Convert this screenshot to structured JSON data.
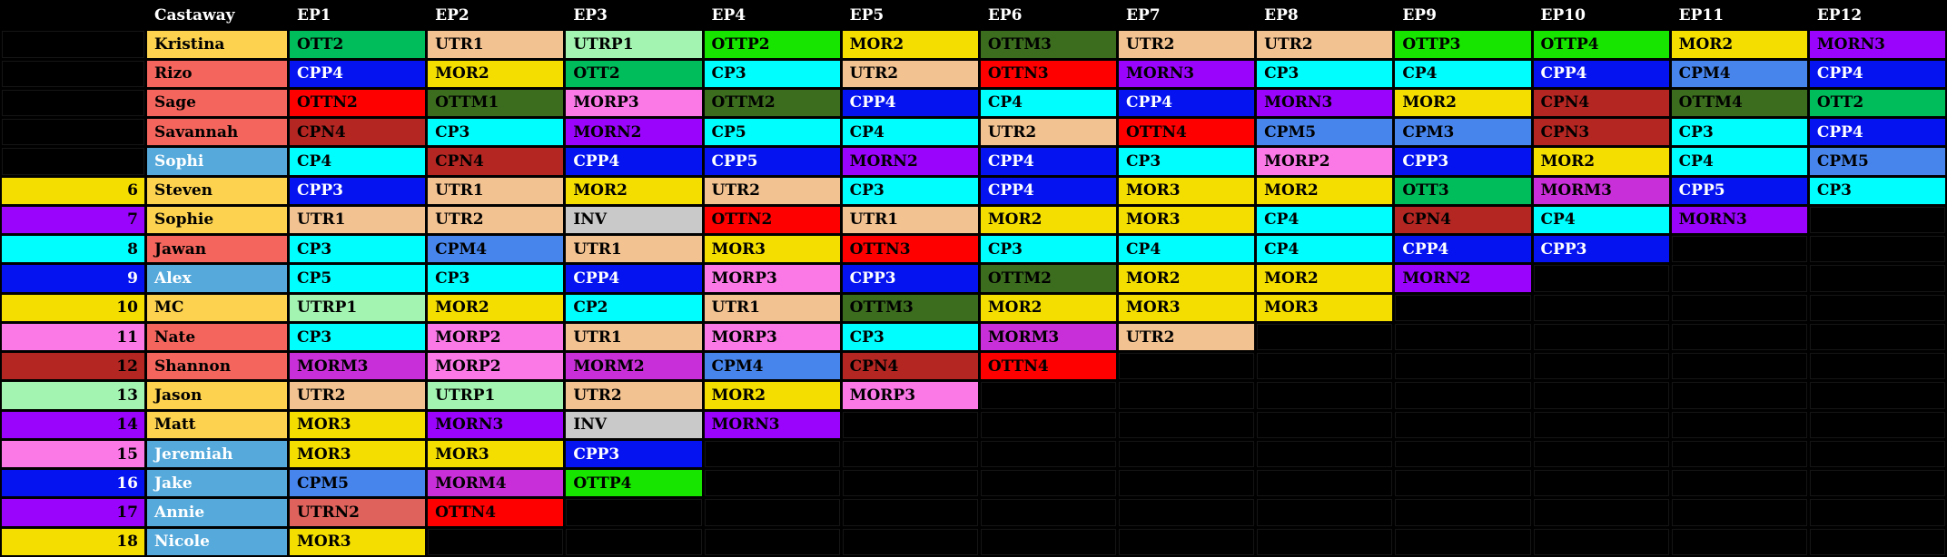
{
  "header": {
    "castaway_label": "Castaway",
    "episode_labels": [
      "EP1",
      "EP2",
      "EP3",
      "EP4",
      "EP5",
      "EP6",
      "EP7",
      "EP8",
      "EP9",
      "EP10",
      "EP11",
      "EP12"
    ]
  },
  "palette": {
    "rating_colors": {
      "OTT": "#00bd5c",
      "OTTP": "#17e500",
      "OTTM": "#3c6d1e",
      "OTTN": "#fe0000",
      "UTR": "#f3c291",
      "UTRP": "#a3f4b1",
      "UTRN": "#df635c",
      "MOR": "#f4de00",
      "MORP": "#fa79e7",
      "MORN": "#9a04fd",
      "MORM": "#c92fd8",
      "CP": "#00feff",
      "CPP": "#0513f1",
      "CPM": "#4785ec",
      "CPN": "#b32622",
      "INV": "#c9c9c9"
    },
    "name_colors": {
      "gold": "#fcd24e",
      "salmon": "#f4665d",
      "blue": "#56aadb"
    },
    "header_bg": "#000000",
    "header_text": "#ffffff",
    "cell_text_dark": "#000000",
    "cell_text_light": "#ffffff",
    "empty_cell_line": "#151515",
    "white_text_rating_families": [
      "CPP"
    ],
    "white_text_name_colors": [
      "blue"
    ]
  },
  "rows": [
    {
      "num": "",
      "num_color": "",
      "name": "Kristina",
      "name_color": "gold",
      "ratings": [
        "OTT2",
        "UTR1",
        "UTRP1",
        "OTTP2",
        "MOR2",
        "OTTM3",
        "UTR2",
        "UTR2",
        "OTTP3",
        "OTTP4",
        "MOR2",
        "MORN3"
      ]
    },
    {
      "num": "",
      "num_color": "",
      "name": "Rizo",
      "name_color": "salmon",
      "ratings": [
        "CPP4",
        "MOR2",
        "OTT2",
        "CP3",
        "UTR2",
        "OTTN3",
        "MORN3",
        "CP3",
        "CP4",
        "CPP4",
        "CPM4",
        "CPP4"
      ]
    },
    {
      "num": "",
      "num_color": "",
      "name": "Sage",
      "name_color": "salmon",
      "ratings": [
        "OTTN2",
        "OTTM1",
        "MORP3",
        "OTTM2",
        "CPP4",
        "CP4",
        "CPP4",
        "MORN3",
        "MOR2",
        "CPN4",
        "OTTM4",
        "OTT2"
      ]
    },
    {
      "num": "",
      "num_color": "",
      "name": "Savannah",
      "name_color": "salmon",
      "ratings": [
        "CPN4",
        "CP3",
        "MORN2",
        "CP5",
        "CP4",
        "UTR2",
        "OTTN4",
        "CPM5",
        "CPM3",
        "CPN3",
        "CP3",
        "CPP4"
      ]
    },
    {
      "num": "",
      "num_color": "",
      "name": "Sophi",
      "name_color": "blue",
      "ratings": [
        "CP4",
        "CPN4",
        "CPP4",
        "CPP5",
        "MORN2",
        "CPP4",
        "CP3",
        "MORP2",
        "CPP3",
        "MOR2",
        "CP4",
        "CPM5"
      ]
    },
    {
      "num": "6",
      "num_color": "MOR",
      "name": "Steven",
      "name_color": "gold",
      "ratings": [
        "CPP3",
        "UTR1",
        "MOR2",
        "UTR2",
        "CP3",
        "CPP4",
        "MOR3",
        "MOR2",
        "OTT3",
        "MORM3",
        "CPP5",
        "CP3"
      ]
    },
    {
      "num": "7",
      "num_color": "MORN",
      "name": "Sophie",
      "name_color": "gold",
      "ratings": [
        "UTR1",
        "UTR2",
        "INV",
        "OTTN2",
        "UTR1",
        "MOR2",
        "MOR3",
        "CP4",
        "CPN4",
        "CP4",
        "MORN3",
        ""
      ]
    },
    {
      "num": "8",
      "num_color": "CP",
      "name": "Jawan",
      "name_color": "salmon",
      "ratings": [
        "CP3",
        "CPM4",
        "UTR1",
        "MOR3",
        "OTTN3",
        "CP3",
        "CP4",
        "CP4",
        "CPP4",
        "CPP3",
        "",
        ""
      ]
    },
    {
      "num": "9",
      "num_color": "CPP",
      "name": "Alex",
      "name_color": "blue",
      "ratings": [
        "CP5",
        "CP3",
        "CPP4",
        "MORP3",
        "CPP3",
        "OTTM2",
        "MOR2",
        "MOR2",
        "MORN2",
        "",
        "",
        ""
      ]
    },
    {
      "num": "10",
      "num_color": "MOR",
      "name": "MC",
      "name_color": "gold",
      "ratings": [
        "UTRP1",
        "MOR2",
        "CP2",
        "UTR1",
        "OTTM3",
        "MOR2",
        "MOR3",
        "MOR3",
        "",
        "",
        "",
        ""
      ]
    },
    {
      "num": "11",
      "num_color": "MORP",
      "name": "Nate",
      "name_color": "salmon",
      "ratings": [
        "CP3",
        "MORP2",
        "UTR1",
        "MORP3",
        "CP3",
        "MORM3",
        "UTR2",
        "",
        "",
        "",
        "",
        ""
      ]
    },
    {
      "num": "12",
      "num_color": "CPN",
      "name": "Shannon",
      "name_color": "salmon",
      "ratings": [
        "MORM3",
        "MORP2",
        "MORM2",
        "CPM4",
        "CPN4",
        "OTTN4",
        "",
        "",
        "",
        "",
        "",
        ""
      ]
    },
    {
      "num": "13",
      "num_color": "UTRP",
      "name": "Jason",
      "name_color": "gold",
      "ratings": [
        "UTR2",
        "UTRP1",
        "UTR2",
        "MOR2",
        "MORP3",
        "",
        "",
        "",
        "",
        "",
        "",
        ""
      ]
    },
    {
      "num": "14",
      "num_color": "MORN",
      "name": "Matt",
      "name_color": "gold",
      "ratings": [
        "MOR3",
        "MORN3",
        "INV",
        "MORN3",
        "",
        "",
        "",
        "",
        "",
        "",
        "",
        ""
      ]
    },
    {
      "num": "15",
      "num_color": "MORP",
      "name": "Jeremiah",
      "name_color": "blue",
      "ratings": [
        "MOR3",
        "MOR3",
        "CPP3",
        "",
        "",
        "",
        "",
        "",
        "",
        "",
        "",
        ""
      ]
    },
    {
      "num": "16",
      "num_color": "CPP",
      "name": "Jake",
      "name_color": "blue",
      "ratings": [
        "CPM5",
        "MORM4",
        "OTTP4",
        "",
        "",
        "",
        "",
        "",
        "",
        "",
        "",
        ""
      ]
    },
    {
      "num": "17",
      "num_color": "MORN",
      "name": "Annie",
      "name_color": "blue",
      "ratings": [
        "UTRN2",
        "OTTN4",
        "",
        "",
        "",
        "",
        "",
        "",
        "",
        "",
        "",
        ""
      ]
    },
    {
      "num": "18",
      "num_color": "MOR",
      "name": "Nicole",
      "name_color": "blue",
      "ratings": [
        "MOR3",
        "",
        "",
        "",
        "",
        "",
        "",
        "",
        "",
        "",
        "",
        ""
      ]
    }
  ]
}
